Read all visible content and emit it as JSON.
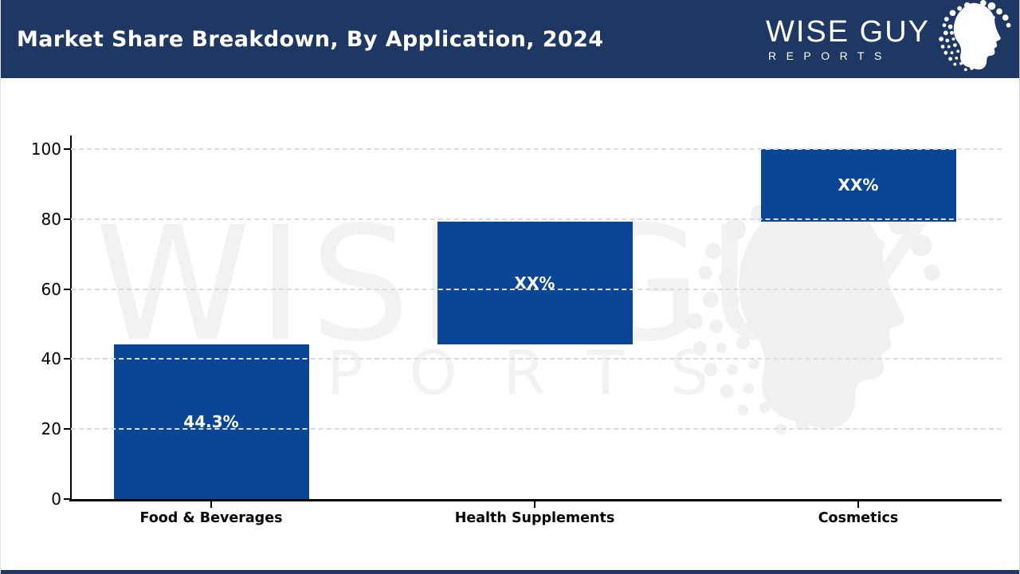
{
  "header": {
    "title": "Market Share Breakdown, By Application, 2024",
    "logo": {
      "line1": "WISE GUY",
      "line2": "REPORTS"
    }
  },
  "watermark": {
    "line1": "WISE GUY",
    "line2": "REPORTS"
  },
  "colors": {
    "navy": "#1f3763",
    "bar": "#0b4596",
    "grid": "#dcdcdc",
    "watermark": "#f0f0f0",
    "bar_label": "#ffffff",
    "axis": "#000000"
  },
  "chart_data": {
    "type": "bar",
    "variant": "waterfall",
    "title": "Market Share Breakdown, By Application, 2024",
    "categories": [
      "Food & Beverages",
      "Health Supplements",
      "Cosmetics"
    ],
    "segments": [
      {
        "category": "Food & Beverages",
        "start": 0,
        "end": 44.3,
        "value": 44.3,
        "label": "44.3%"
      },
      {
        "category": "Health Supplements",
        "start": 44.3,
        "end": 79.3,
        "value": 35.0,
        "label": "XX%"
      },
      {
        "category": "Cosmetics",
        "start": 79.3,
        "end": 100,
        "value": 20.7,
        "label": "XX%"
      }
    ],
    "bar_labels": [
      "44.3%",
      "XX%",
      "XX%"
    ],
    "yticks": [
      0,
      20,
      40,
      60,
      80,
      100
    ],
    "ylim": [
      0,
      104
    ],
    "xlabel": "",
    "ylabel": "",
    "grid": {
      "axis": "y",
      "style": "dashed",
      "drawn_over_bars": true
    },
    "legend": "none",
    "bar_color": "#0b4596",
    "bar_label_color": "#ffffff"
  }
}
